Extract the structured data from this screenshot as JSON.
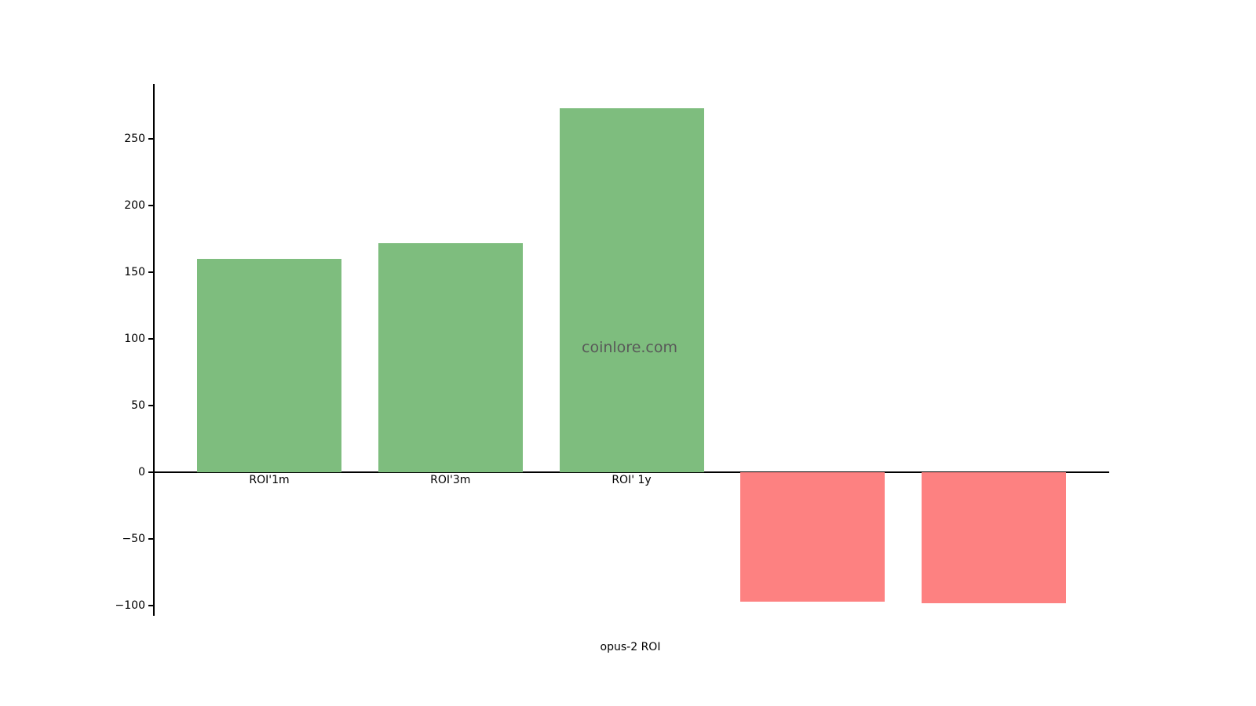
{
  "chart_data": {
    "type": "bar",
    "title": "opus-2 ROI",
    "watermark": "coinlore.com",
    "categories": [
      "ROI'1m",
      "ROI'3m",
      "ROI' 1y",
      "",
      ""
    ],
    "values": [
      160,
      172,
      273,
      -97,
      -98
    ],
    "series": [
      {
        "name": "opus-2 ROI",
        "values": [
          160,
          172,
          273,
          -97,
          -98
        ]
      }
    ],
    "yticks": [
      250,
      200,
      150,
      100,
      50,
      0,
      -50,
      -100
    ],
    "ytick_labels": [
      "250",
      "200",
      "150",
      "100",
      "50",
      "0",
      "−50",
      "−100"
    ],
    "ylim": [
      -108,
      291
    ],
    "xlabel": "",
    "ylabel": "",
    "grid": false,
    "legend_position": "none",
    "colors": {
      "positive_bar": "#7ebd7e",
      "negative_bar": "#fd8181",
      "axis": "#000000",
      "watermark_text": "#595959",
      "background": "#ffffff"
    }
  }
}
